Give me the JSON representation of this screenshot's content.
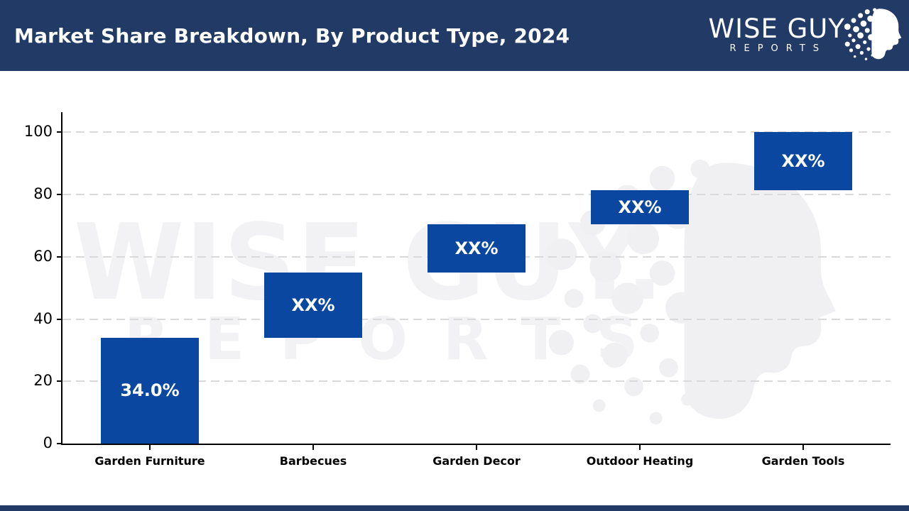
{
  "header": {
    "title": "Market Share Breakdown, By Product Type, 2024",
    "logo": {
      "line1": "WISE GUY",
      "line2": "REPORTS"
    }
  },
  "watermark": {
    "line1": "WISE GUY.",
    "line2": "REPORTS"
  },
  "colors": {
    "header_bg": "#223A66",
    "footer_bg": "#223A66",
    "bar": "#0A47A0",
    "grid": "#D9D9D9",
    "axis": "#000000",
    "bar_label_text": "#FFFFFF",
    "watermark": "#F2F2F4"
  },
  "chart_data": {
    "type": "bar",
    "subtype": "waterfall-cumulative",
    "title": "Market Share Breakdown, By Product Type, 2024",
    "categories": [
      "Garden Furniture",
      "Barbecues",
      "Garden Decor",
      "Outdoor Heating",
      "Garden Tools"
    ],
    "segments": [
      {
        "start": 0,
        "end": 34,
        "label": "34.0%"
      },
      {
        "start": 34,
        "end": 55,
        "label": "XX%"
      },
      {
        "start": 55,
        "end": 70.5,
        "label": "XX%"
      },
      {
        "start": 70.5,
        "end": 81.5,
        "label": "XX%"
      },
      {
        "start": 81.5,
        "end": 100,
        "label": "XX%"
      }
    ],
    "bar_labels": [
      "34.0%",
      "XX%",
      "XX%",
      "XX%",
      "XX%"
    ],
    "yticks": [
      0,
      20,
      40,
      60,
      80,
      100
    ],
    "ylim": [
      0,
      106
    ],
    "xlabel": "",
    "ylabel": "",
    "grid": "horizontal-dashed",
    "legend": "none"
  }
}
